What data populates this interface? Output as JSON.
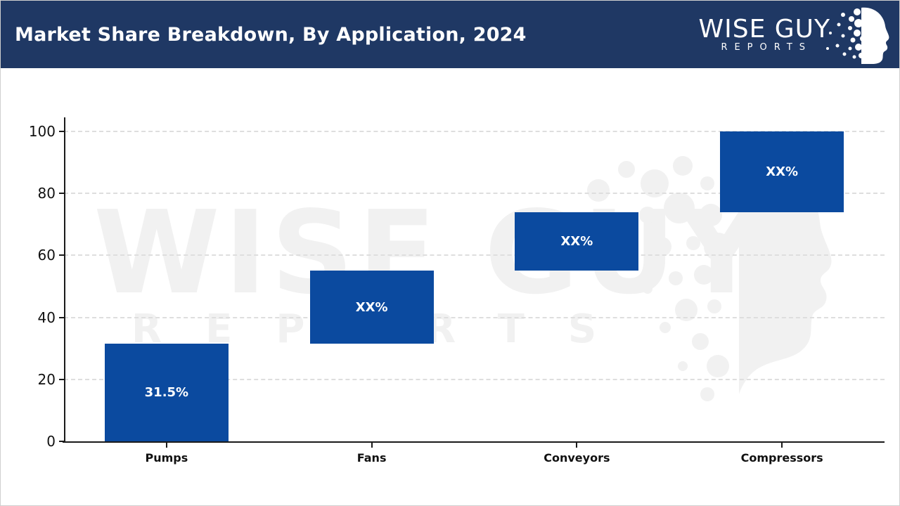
{
  "header": {
    "title": "Market Share Breakdown, By Application, 2024",
    "logo": {
      "line1": "WISE GUY",
      "line2": "REPORTS"
    }
  },
  "watermark": {
    "line1": "WISE GUY",
    "line2": "REPORTS"
  },
  "colors": {
    "header_bg": "#1f3864",
    "bar": "#0b4a9f",
    "bar_label": "#ffffff",
    "grid": "#dedede",
    "axis": "#1a1a1a",
    "tick_label": "#111111",
    "watermark": "#f1f1f1"
  },
  "chart_data": {
    "type": "bar",
    "subtype": "waterfall",
    "title": "Market Share Breakdown, By Application, 2024",
    "categories": [
      "Pumps",
      "Fans",
      "Conveyors",
      "Compressors"
    ],
    "bars": [
      {
        "category": "Pumps",
        "start": 0,
        "end": 31.5,
        "label": "31.5%"
      },
      {
        "category": "Fans",
        "start": 31.5,
        "end": 55,
        "label": "XX%"
      },
      {
        "category": "Conveyors",
        "start": 55,
        "end": 74,
        "label": "XX%"
      },
      {
        "category": "Compressors",
        "start": 74,
        "end": 100,
        "label": "XX%"
      }
    ],
    "ylim": [
      0,
      105
    ],
    "yticks": [
      0,
      20,
      40,
      60,
      80,
      100
    ],
    "xlabel": "",
    "ylabel": "",
    "grid": "horizontal-dashed",
    "legend": "none",
    "bar_color": "#0b4a9f"
  }
}
